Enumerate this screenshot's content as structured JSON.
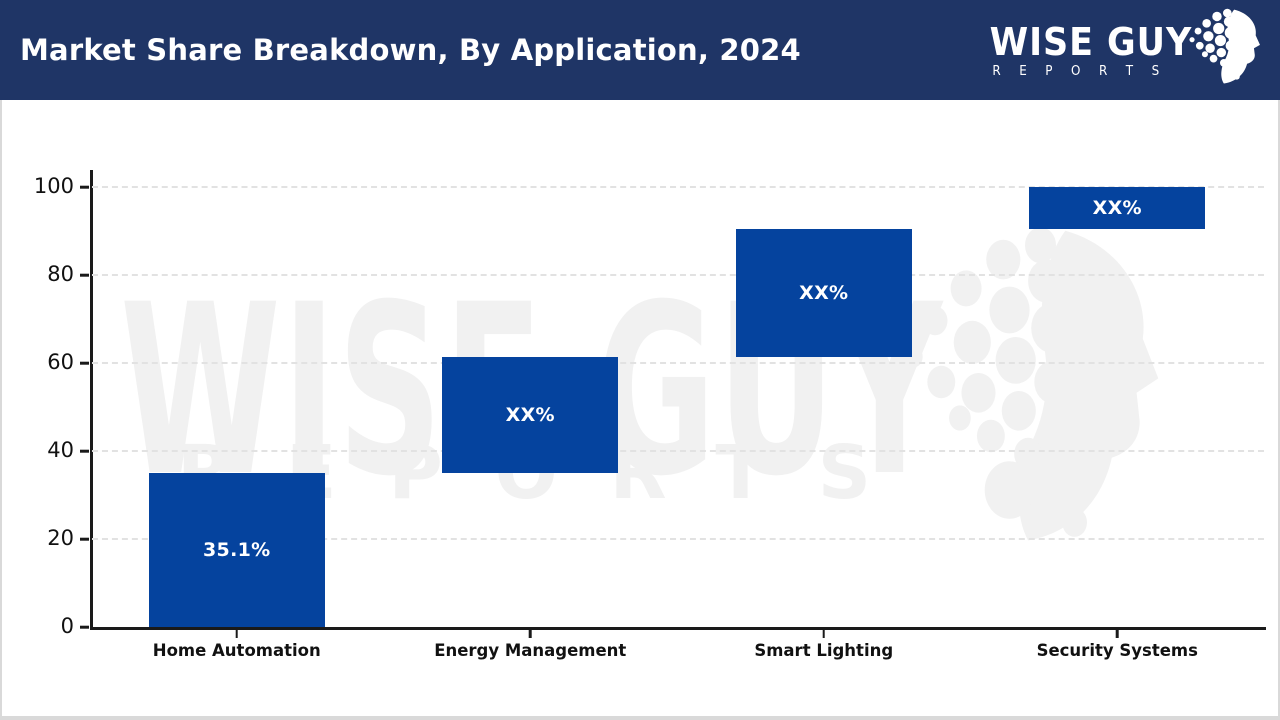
{
  "header": {
    "title": "Market Share Breakdown, By Application, 2024",
    "logo": {
      "line1": "WISE GUY",
      "line2": "R E P O R T S"
    },
    "bg_color": "#1f3566"
  },
  "watermark": {
    "line1": "WISE GUY",
    "line2": "REPORTS"
  },
  "chart_data": {
    "type": "bar",
    "subtype": "waterfall",
    "title": "Market Share Breakdown, By Application, 2024",
    "categories": [
      "Home Automation",
      "Energy Management",
      "Smart Lighting",
      "Security Systems"
    ],
    "segments": [
      {
        "category": "Home Automation",
        "start": 0,
        "end": 35.1,
        "label": "35.1%"
      },
      {
        "category": "Energy Management",
        "start": 35.1,
        "end": 61.3,
        "label": "XX%"
      },
      {
        "category": "Smart Lighting",
        "start": 61.3,
        "end": 90.5,
        "label": "XX%"
      },
      {
        "category": "Security Systems",
        "start": 90.5,
        "end": 100,
        "label": "XX%"
      }
    ],
    "yticks": [
      0,
      20,
      40,
      60,
      80,
      100
    ],
    "ylim": [
      0,
      100
    ],
    "xlabel": "",
    "ylabel": "",
    "bar_color": "#05439e",
    "grid": "horizontal-dashed",
    "legend": "none"
  }
}
